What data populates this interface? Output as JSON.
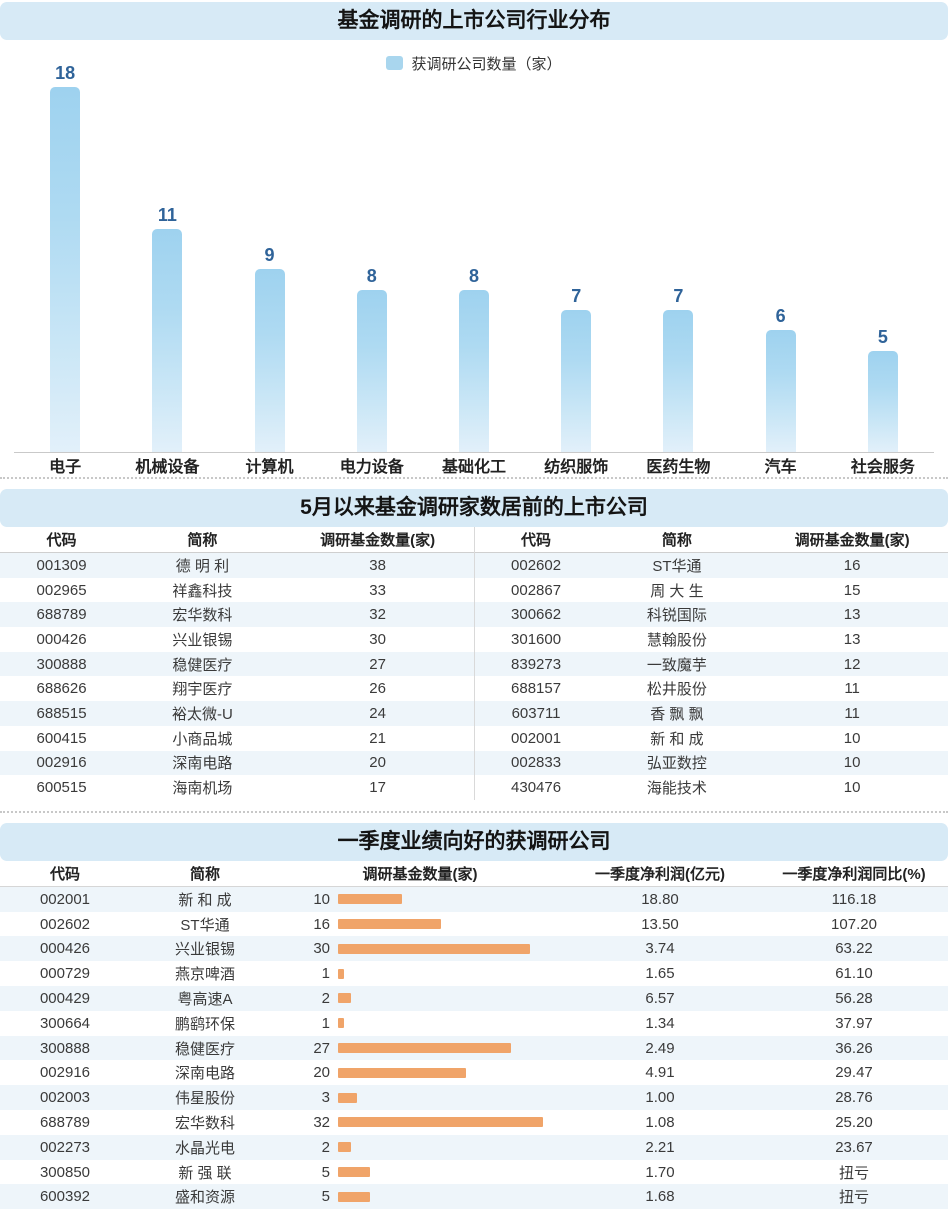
{
  "colors": {
    "title_bar_bg": "#d7eaf6",
    "bar_gradient_top": "#9ed2ef",
    "bar_gradient_bottom": "#e2f0fa",
    "value_label": "#2f6399",
    "legend_swatch": "#a9d6ee",
    "row_stripe": "#eef5fa",
    "orange_bar": "#f0a469"
  },
  "chart_data": [
    {
      "type": "bar",
      "title": "基金调研的上市公司行业分布",
      "legend": [
        "获调研公司数量（家）"
      ],
      "legend_position": "top-center",
      "categories": [
        "电子",
        "机械设备",
        "计算机",
        "电力设备",
        "基础化工",
        "纺织服饰",
        "医药生物",
        "汽车",
        "社会服务"
      ],
      "values": [
        18,
        11,
        9,
        8,
        8,
        7,
        7,
        6,
        5
      ],
      "ylim": [
        0,
        18
      ],
      "grid": false,
      "value_labels": true,
      "xlabel": "",
      "ylabel": ""
    },
    {
      "type": "table",
      "title": "5月以来基金调研家数居前的上市公司",
      "columns": [
        "代码",
        "简称",
        "调研基金数量(家)"
      ],
      "left_rows": [
        [
          "001309",
          "德 明 利",
          "38"
        ],
        [
          "002965",
          "祥鑫科技",
          "33"
        ],
        [
          "688789",
          "宏华数科",
          "32"
        ],
        [
          "000426",
          "兴业银锡",
          "30"
        ],
        [
          "300888",
          "稳健医疗",
          "27"
        ],
        [
          "688626",
          "翔宇医疗",
          "26"
        ],
        [
          "688515",
          "裕太微-U",
          "24"
        ],
        [
          "600415",
          "小商品城",
          "21"
        ],
        [
          "002916",
          "深南电路",
          "20"
        ],
        [
          "600515",
          "海南机场",
          "17"
        ]
      ],
      "right_rows": [
        [
          "002602",
          "ST华通",
          "16"
        ],
        [
          "002867",
          "周 大 生",
          "15"
        ],
        [
          "300662",
          "科锐国际",
          "13"
        ],
        [
          "301600",
          "慧翰股份",
          "13"
        ],
        [
          "839273",
          "一致魔芋",
          "12"
        ],
        [
          "688157",
          "松井股份",
          "11"
        ],
        [
          "603711",
          "香 飘 飘",
          "11"
        ],
        [
          "002001",
          "新 和 成",
          "10"
        ],
        [
          "002833",
          "弘亚数控",
          "10"
        ],
        [
          "430476",
          "海能技术",
          "10"
        ]
      ]
    },
    {
      "type": "table",
      "title": "一季度业绩向好的获调研公司",
      "columns": [
        "代码",
        "简称",
        "调研基金数量(家)",
        "一季度净利润(亿元)",
        "一季度净利润同比(%)"
      ],
      "bar_scale_max": 32,
      "rows": [
        [
          "002001",
          "新 和 成",
          10,
          "18.80",
          "116.18"
        ],
        [
          "002602",
          "ST华通",
          16,
          "13.50",
          "107.20"
        ],
        [
          "000426",
          "兴业银锡",
          30,
          "3.74",
          "63.22"
        ],
        [
          "000729",
          "燕京啤酒",
          1,
          "1.65",
          "61.10"
        ],
        [
          "000429",
          "粤高速A",
          2,
          "6.57",
          "56.28"
        ],
        [
          "300664",
          "鹏鹞环保",
          1,
          "1.34",
          "37.97"
        ],
        [
          "300888",
          "稳健医疗",
          27,
          "2.49",
          "36.26"
        ],
        [
          "002916",
          "深南电路",
          20,
          "4.91",
          "29.47"
        ],
        [
          "002003",
          "伟星股份",
          3,
          "1.00",
          "28.76"
        ],
        [
          "688789",
          "宏华数科",
          32,
          "1.08",
          "25.20"
        ],
        [
          "002273",
          "水晶光电",
          2,
          "2.21",
          "23.67"
        ],
        [
          "300850",
          "新 强 联",
          5,
          "1.70",
          "扭亏"
        ],
        [
          "600392",
          "盛和资源",
          5,
          "1.68",
          "扭亏"
        ]
      ]
    }
  ]
}
